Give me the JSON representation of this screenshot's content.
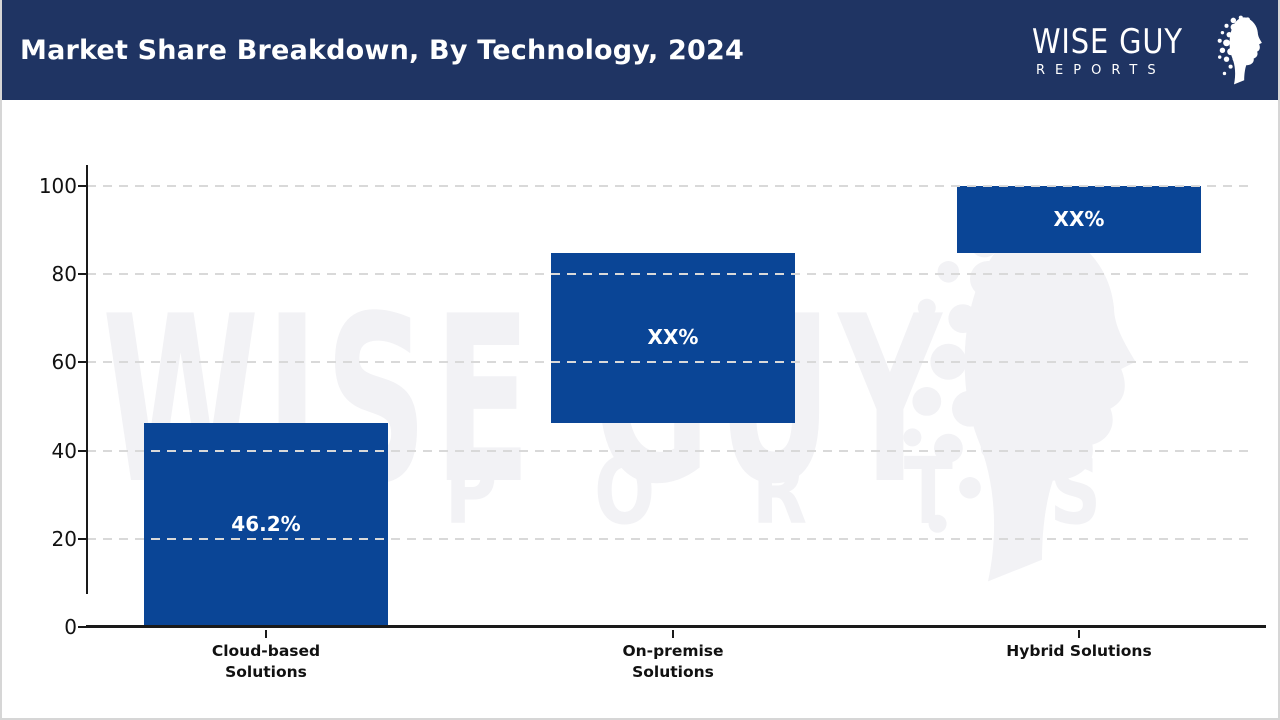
{
  "header": {
    "title": "Market Share Breakdown, By Technology, 2024",
    "background_color": "#1f3463"
  },
  "logo": {
    "name": "WISE GUY",
    "sub": "REPORTS"
  },
  "watermark": {
    "name": "WISE GUY",
    "sub": "R E P O R T S"
  },
  "chart_data": {
    "type": "bar",
    "subtype": "floating-stacked-percentage",
    "title": "Market Share Breakdown, By Technology, 2024",
    "categories": [
      {
        "id": "cloud-based-solutions",
        "lines": [
          "Cloud-based",
          "Solutions"
        ]
      },
      {
        "id": "on-premise-solutions",
        "lines": [
          "On-premise",
          "Solutions"
        ]
      },
      {
        "id": "hybrid-solutions",
        "lines": [
          "Hybrid Solutions"
        ]
      }
    ],
    "values": [
      {
        "category": "Cloud-based Solutions",
        "start": 0,
        "end": 46.2,
        "label": "46.2%"
      },
      {
        "category": "On-premise Solutions",
        "start": 46.2,
        "end": 84.8,
        "label": "XX%"
      },
      {
        "category": "Hybrid Solutions",
        "start": 84.8,
        "end": 100,
        "label": "XX%"
      }
    ],
    "xlabel": "",
    "ylabel": "",
    "ylim": [
      0,
      100
    ],
    "yticks": [
      0,
      20,
      40,
      60,
      80,
      100
    ],
    "grid": "horizontal-dashed",
    "legend": "none",
    "bar_color": "#0a4596",
    "bar_label_color": "#ffffff",
    "grid_color": "#d9d9d9",
    "axis_color": "#1a1a1a"
  }
}
